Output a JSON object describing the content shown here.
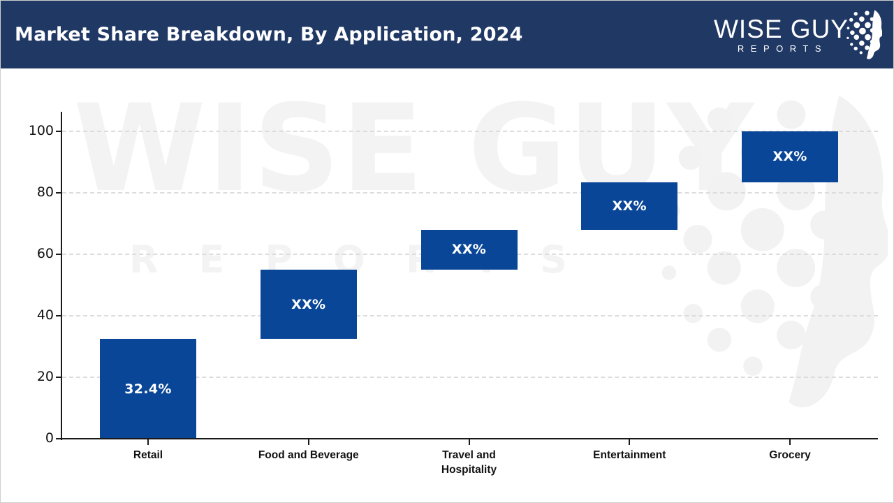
{
  "header": {
    "title": "Market Share Breakdown, By Application, 2024",
    "bg_color": "#203864",
    "logo": {
      "line1": "WISE GUY",
      "line2": "REPORTS"
    }
  },
  "watermark": {
    "line1": "WISE GUY",
    "line2": "REPORTS",
    "color": "#f3f3f3"
  },
  "chart_data": {
    "type": "bar",
    "subtype": "waterfall",
    "title": "Market Share Breakdown, By Application, 2024",
    "categories": [
      "Retail",
      "Food and Beverage",
      "Travel and Hospitality",
      "Entertainment",
      "Grocery"
    ],
    "bars": [
      {
        "category": "Retail",
        "start": 0,
        "end": 32.4,
        "label": "32.4%"
      },
      {
        "category": "Food and Beverage",
        "start": 32.4,
        "end": 55,
        "label": "XX%"
      },
      {
        "category": "Travel and Hospitality",
        "start": 55,
        "end": 68,
        "label": "XX%"
      },
      {
        "category": "Entertainment",
        "start": 68,
        "end": 83.5,
        "label": "XX%"
      },
      {
        "category": "Grocery",
        "start": 83.5,
        "end": 100,
        "label": "XX%"
      }
    ],
    "yticks": [
      0,
      20,
      40,
      60,
      80,
      100
    ],
    "ylim": [
      0,
      105
    ],
    "xlabel": "",
    "ylabel": "",
    "grid": true,
    "legend": false,
    "bar_color": "#0a4697",
    "bar_label_color": "#ffffff",
    "grid_color": "#dcdcdc",
    "axis_color": "#1a1a1a"
  }
}
